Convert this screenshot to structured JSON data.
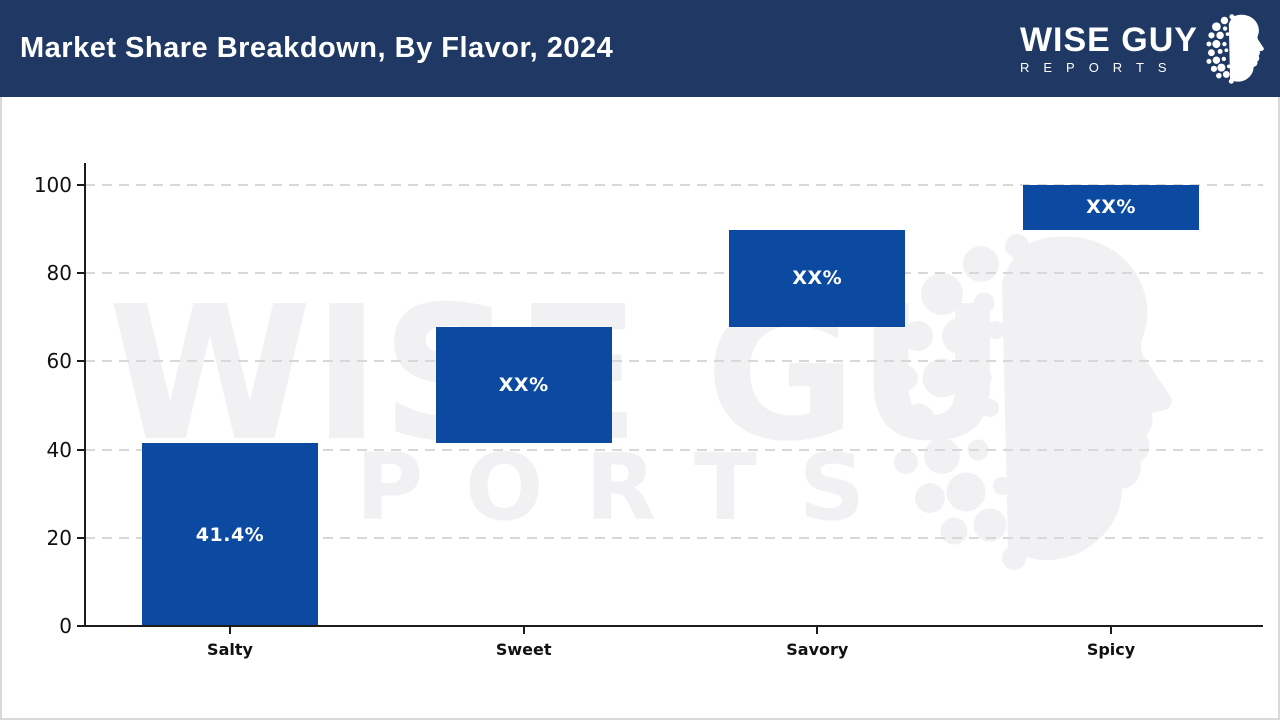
{
  "header": {
    "title": "Market Share Breakdown, By Flavor, 2024",
    "logo": {
      "line1": "WISE GUY",
      "line2": "REPORTS"
    }
  },
  "watermark": {
    "line1": "WISE GUY",
    "line2": "REPORTS"
  },
  "chart_data": {
    "type": "bar",
    "subtype": "waterfall",
    "title": "Market Share Breakdown, By Flavor, 2024",
    "categories": [
      "Salty",
      "Sweet",
      "Savory",
      "Spicy"
    ],
    "segments": [
      {
        "category": "Salty",
        "start": 0,
        "end": 41.4,
        "label": "41.4%"
      },
      {
        "category": "Sweet",
        "start": 41.4,
        "end": 67.8,
        "label": "XX%"
      },
      {
        "category": "Savory",
        "start": 67.8,
        "end": 89.8,
        "label": "XX%"
      },
      {
        "category": "Spicy",
        "start": 89.8,
        "end": 100,
        "label": "XX%"
      }
    ],
    "yticks": [
      0,
      20,
      40,
      60,
      80,
      100
    ],
    "ylim": [
      0,
      105
    ],
    "xlabel": "",
    "ylabel": "",
    "grid": "horizontal-dashed",
    "legend": "none"
  },
  "colors": {
    "header_bg": "#1F3864",
    "bar": "#0C4AA2",
    "bar_label": "#ffffff",
    "grid": "#d8d8d8",
    "axis": "#1c1c1c",
    "tick_label": "#111111",
    "watermark": "#f1f1f4",
    "frame_border": "#d9d9d9"
  }
}
